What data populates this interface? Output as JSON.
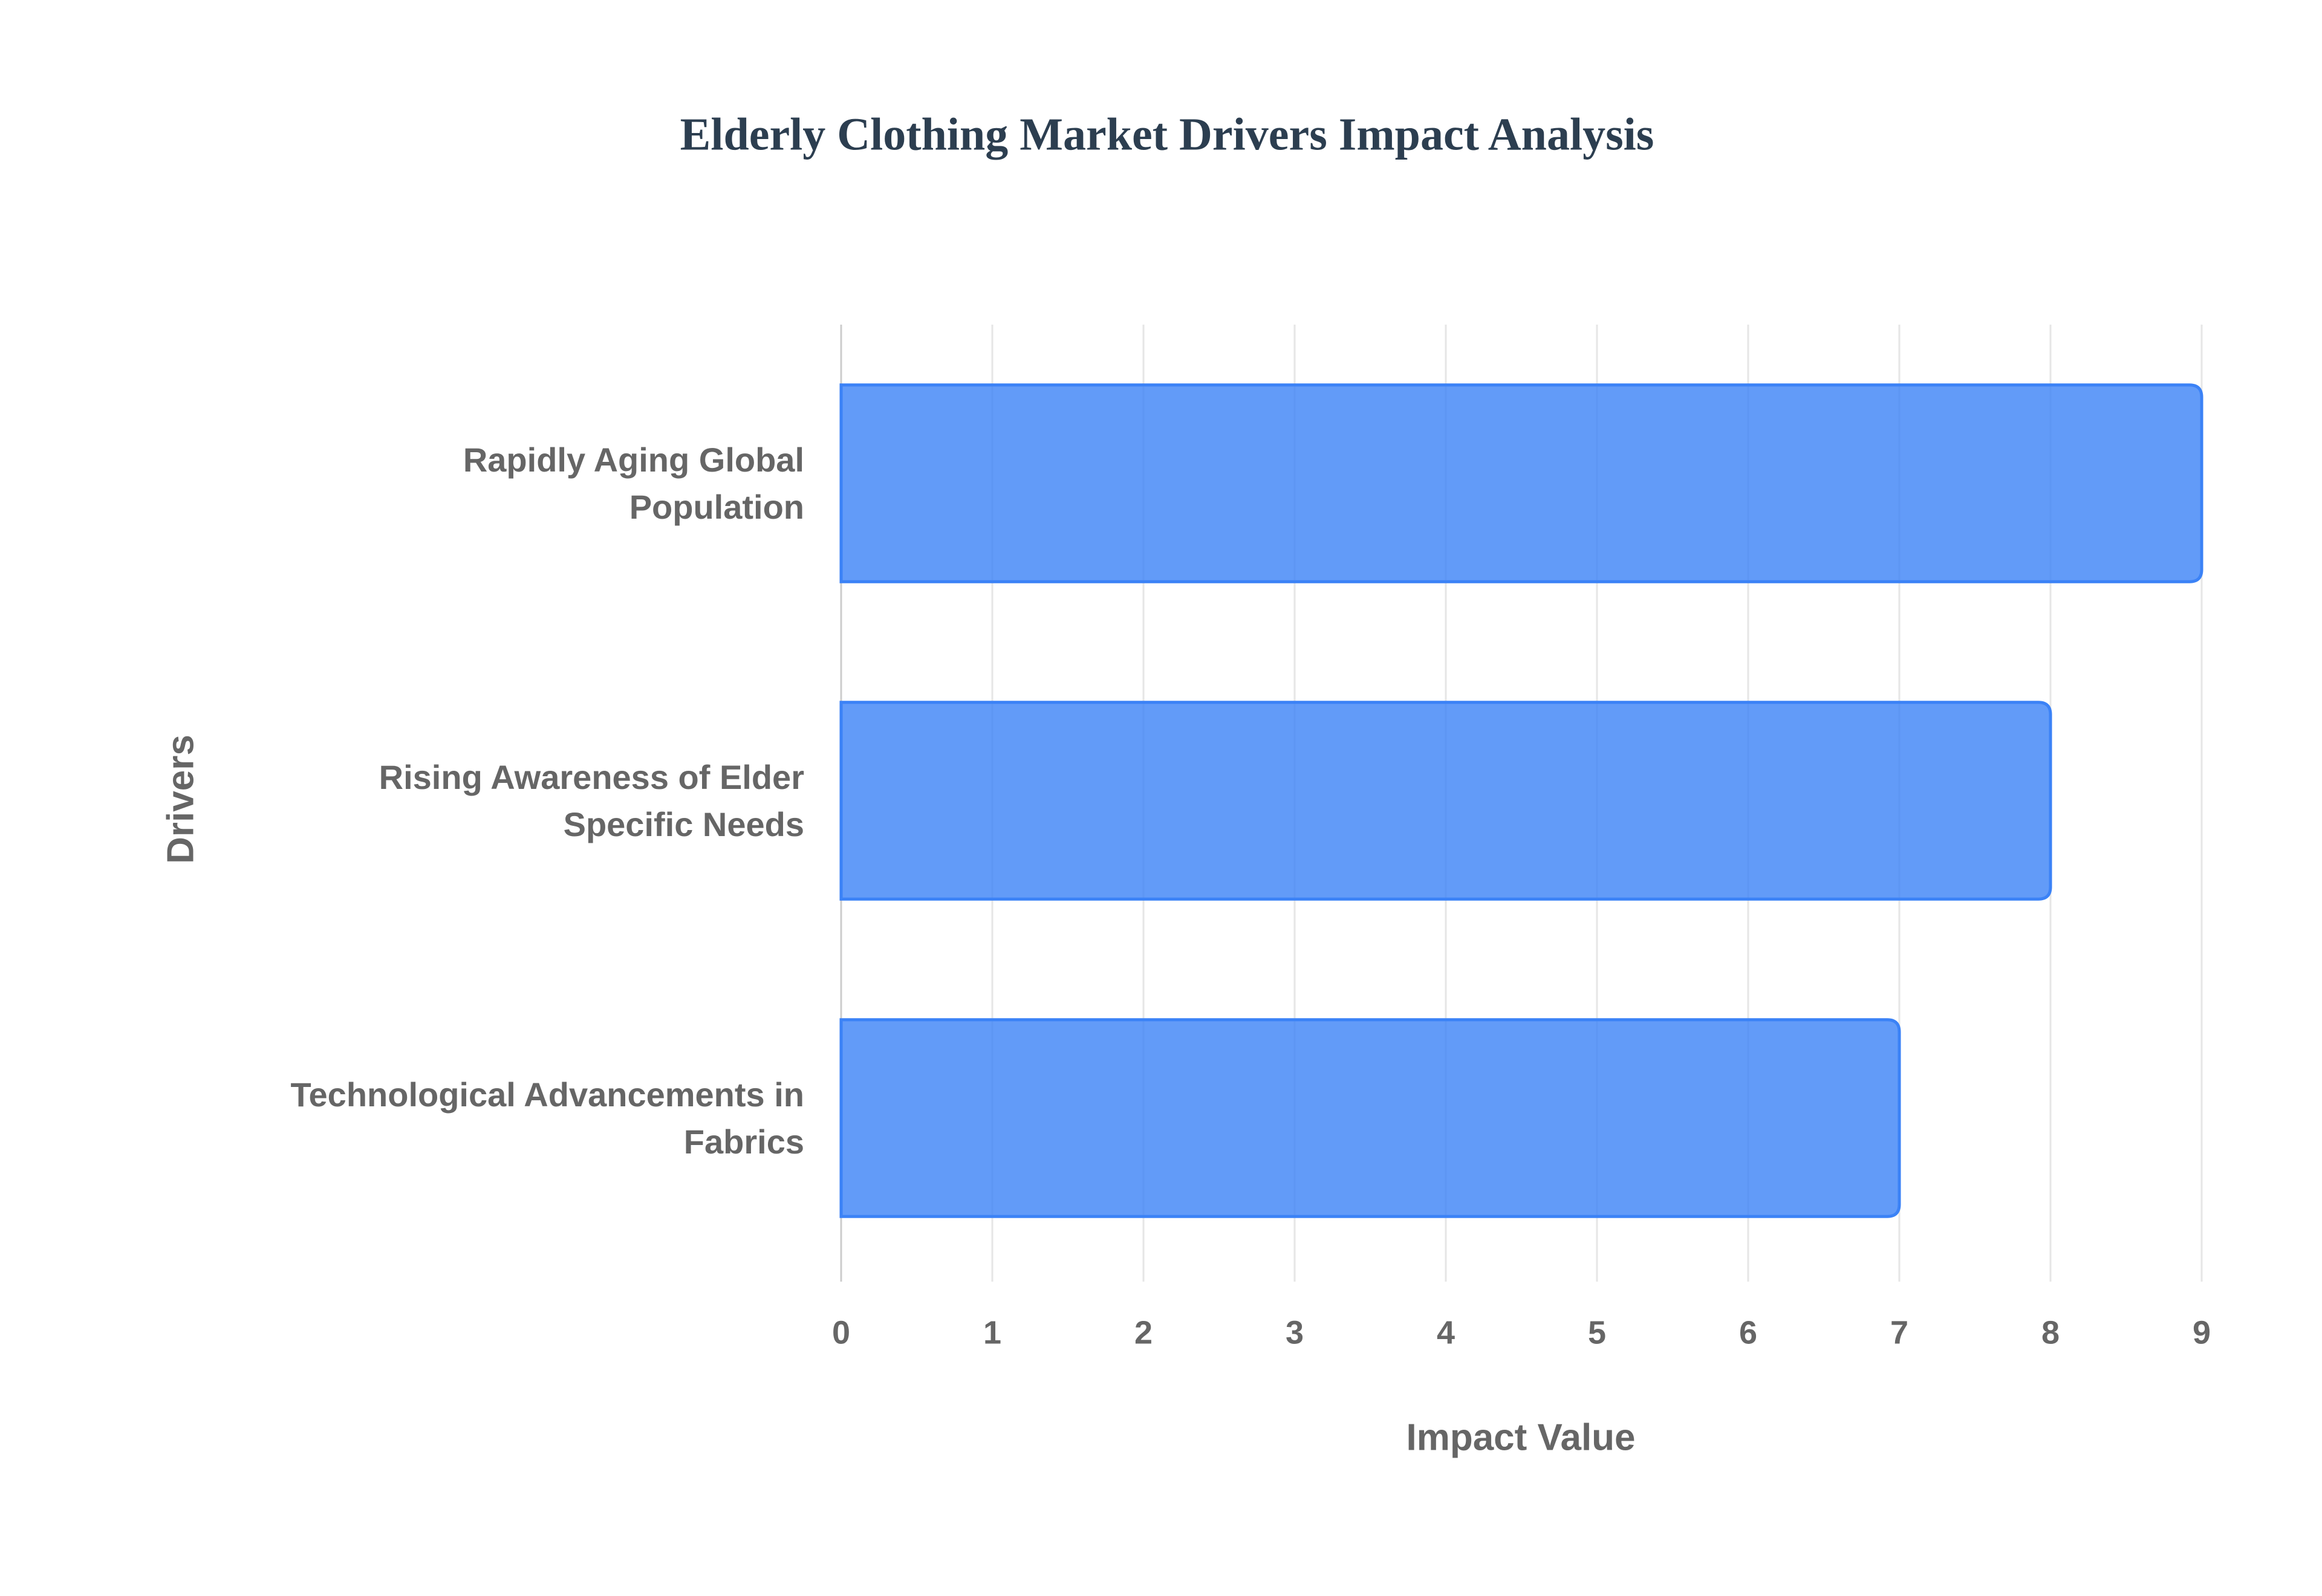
{
  "chart_data": {
    "type": "bar",
    "orientation": "horizontal",
    "title": "Elderly Clothing Market Drivers Impact Analysis",
    "xlabel": "Impact Value",
    "ylabel": "Drivers",
    "categories": [
      "Rapidly Aging Global\nPopulation",
      "Rising Awareness of Elder\nSpecific Needs",
      "Technological Advancements in\nFabrics"
    ],
    "values": [
      9,
      8,
      7
    ],
    "color": "#3b82f6",
    "xlim": [
      0,
      9
    ],
    "xticks": [
      0,
      1,
      2,
      3,
      4,
      5,
      6,
      7,
      8,
      9
    ],
    "grid": true
  }
}
